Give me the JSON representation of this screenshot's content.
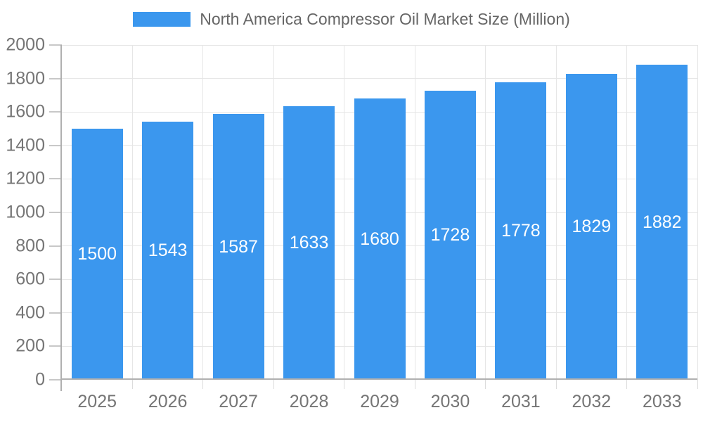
{
  "legend": {
    "label": "North America Compressor Oil Market Size (Million)"
  },
  "colors": {
    "background": "#FFFFFF",
    "bar": "#3B97EE",
    "bar_value_text": "#FFFFFF",
    "axis_line": "#B0B0B0",
    "gridline": "#E6E6E6",
    "tick": "#C8C8C8",
    "tick_light": "#DCDCDC",
    "axis_label_text": "#757575",
    "legend_text": "#666666"
  },
  "chart_data": {
    "type": "bar",
    "title": "North America Compressor Oil Market Size (Million)",
    "series_name": "North America Compressor Oil Market Size (Million)",
    "categories": [
      "2025",
      "2026",
      "2027",
      "2028",
      "2029",
      "2030",
      "2031",
      "2032",
      "2033"
    ],
    "values": [
      1500,
      1543,
      1587,
      1633,
      1680,
      1728,
      1778,
      1829,
      1882
    ],
    "xlabel": "",
    "ylabel": "",
    "ylim": [
      0,
      2000
    ],
    "yticks": [
      0,
      200,
      400,
      600,
      800,
      1000,
      1200,
      1400,
      1600,
      1800,
      2000
    ],
    "grid": true,
    "legend_position": "top-center",
    "value_label_position": "inside-center"
  }
}
